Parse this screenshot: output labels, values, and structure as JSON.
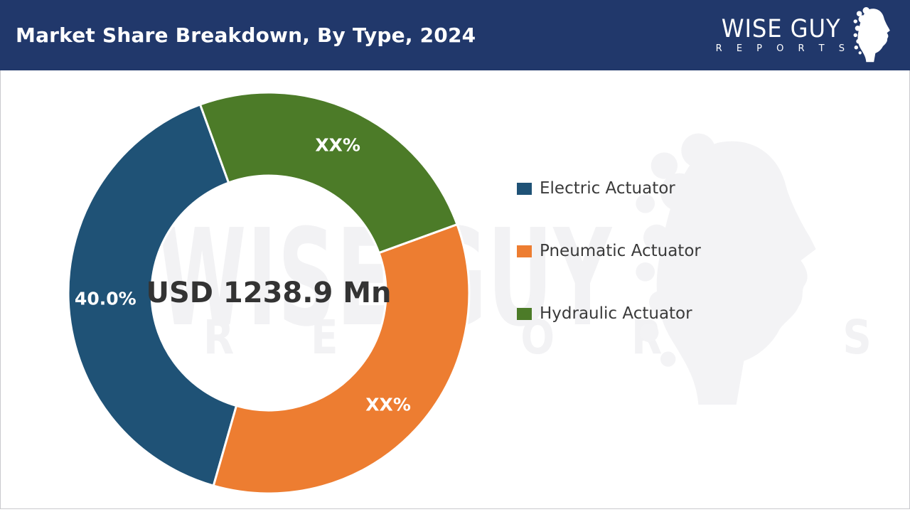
{
  "header": {
    "title": "Market Share Breakdown, By Type, 2024",
    "bg_color": "#21386B",
    "logo": {
      "line1": "WISE GUY",
      "line2": "R E P O R T S"
    }
  },
  "watermark": {
    "line1": "WISE GUY",
    "line2": "R E P O R T S"
  },
  "chart_data": {
    "type": "pie",
    "variant": "donut",
    "title": "Market Share Breakdown, By Type, 2024",
    "center_label": "USD 1238.9 Mn",
    "start_angle_deg": 110,
    "direction": "counterclockwise",
    "inner_radius_ratio": 0.585,
    "legend_position": "right",
    "grid": false,
    "segments": [
      {
        "label": "Electric Actuator",
        "value_pct": 40.0,
        "slice_label": "40.0%",
        "color": "#1F5276"
      },
      {
        "label": "Pneumatic Actuator",
        "value_pct": 35.0,
        "slice_label": "XX%",
        "color": "#ED7D31"
      },
      {
        "label": "Hydraulic Actuator",
        "value_pct": 25.0,
        "slice_label": "XX%",
        "color": "#4C7B28"
      }
    ]
  },
  "colors": {
    "header_bg": "#21386B",
    "watermark": "#f2f2f4",
    "center_text": "#333333",
    "legend_text": "#3a3a3a"
  }
}
